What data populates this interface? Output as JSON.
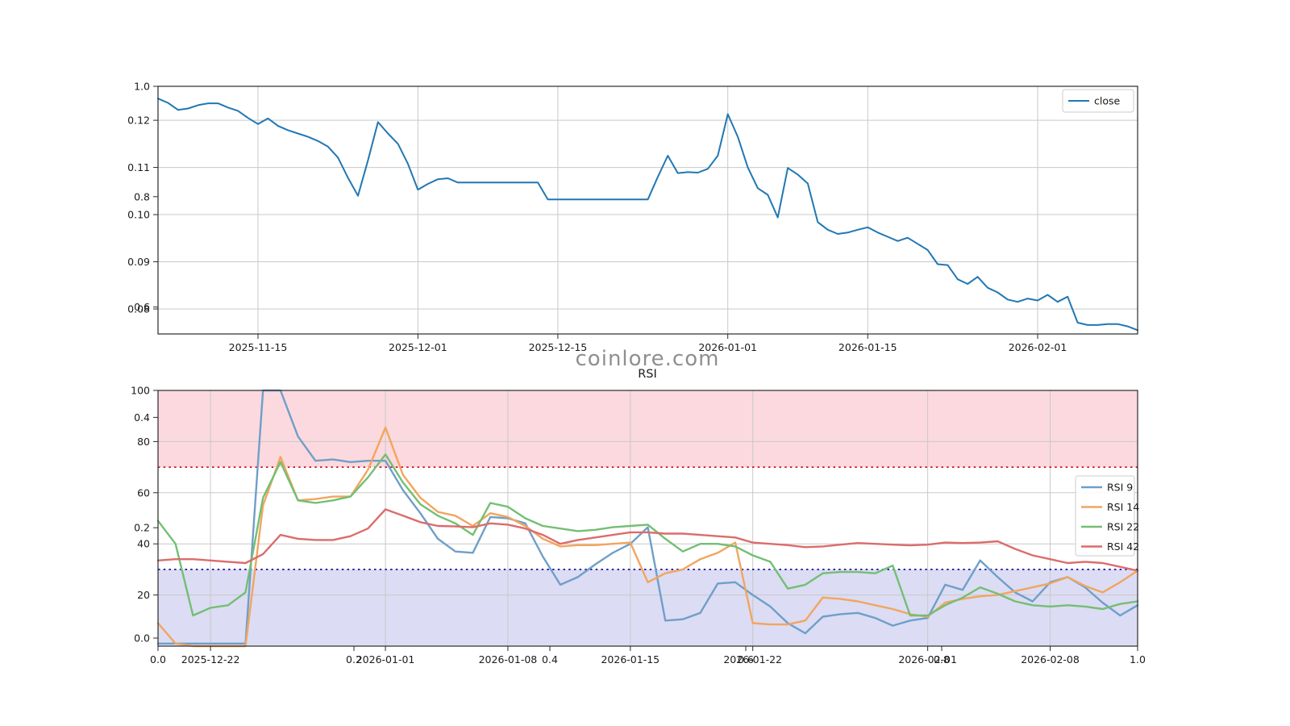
{
  "watermark": "coinlore.com",
  "rsi_title": "RSI",
  "colors": {
    "close": "#2177b4",
    "rsi9": "#6f9fc8",
    "rsi14": "#f2a55f",
    "rsi22": "#73bf73",
    "rsi42": "#dc6c6c",
    "overbought_band": "#fbd9de",
    "oversold_band": "#dcdcf4",
    "overbought_line": "#cc1122",
    "oversold_line": "#1111aa",
    "grid": "#c9c9c9",
    "spine": "#2a2a2a",
    "watermark_text": "#8f8f8f",
    "legend_border": "#cccccc"
  },
  "figure_axis": {
    "x_tick_labels": [
      "0.0",
      "0.2",
      "0.4",
      "0.6",
      "0.8",
      "1.0"
    ],
    "y_tick_labels": [
      "1.0",
      "0.8",
      "0.6",
      "0.4",
      "0.2",
      "0.0"
    ]
  },
  "chart_data": [
    {
      "type": "line",
      "title": "",
      "legend_position": "upper right",
      "grid": true,
      "start_date": "2025-11-05",
      "ylim": [
        0.0747,
        0.1272
      ],
      "y_ticks": [
        {
          "value": 0.12,
          "label": "0.12"
        },
        {
          "value": 0.11,
          "label": "0.11"
        },
        {
          "value": 0.1,
          "label": "0.10"
        },
        {
          "value": 0.09,
          "label": "0.09"
        },
        {
          "value": 0.08,
          "label": "0.08"
        }
      ],
      "x_ticks": [
        {
          "index": 10,
          "label": "2025-11-15"
        },
        {
          "index": 26,
          "label": "2025-12-01"
        },
        {
          "index": 40,
          "label": "2025-12-15"
        },
        {
          "index": 57,
          "label": "2026-01-01"
        },
        {
          "index": 71,
          "label": "2026-01-15"
        },
        {
          "index": 88,
          "label": "2026-02-01"
        }
      ],
      "series": [
        {
          "name": "close",
          "color_key": "close",
          "width": 2,
          "values": [
            0.1246,
            0.1237,
            0.1222,
            0.1225,
            0.1232,
            0.1236,
            0.1236,
            0.1227,
            0.122,
            0.1205,
            0.1192,
            0.1204,
            0.1188,
            0.1179,
            0.1172,
            0.1165,
            0.1156,
            0.1144,
            0.1121,
            0.1078,
            0.104,
            0.1115,
            0.1196,
            0.1172,
            0.115,
            0.1108,
            0.1053,
            0.1065,
            0.1075,
            0.1077,
            0.1068,
            0.1068,
            0.1068,
            0.1068,
            0.1068,
            0.1068,
            0.1068,
            0.1068,
            0.1068,
            0.1032,
            0.1032,
            0.1032,
            0.1032,
            0.1032,
            0.1032,
            0.1032,
            0.1032,
            0.1032,
            0.1032,
            0.1032,
            0.108,
            0.1125,
            0.1088,
            0.109,
            0.1089,
            0.1097,
            0.1125,
            0.1213,
            0.1165,
            0.11,
            0.1056,
            0.1042,
            0.0994,
            0.1099,
            0.1085,
            0.1066,
            0.0984,
            0.0968,
            0.0959,
            0.0962,
            0.0968,
            0.0973,
            0.0962,
            0.0953,
            0.0944,
            0.0951,
            0.0938,
            0.0925,
            0.0895,
            0.0893,
            0.0863,
            0.0853,
            0.0868,
            0.0845,
            0.0835,
            0.082,
            0.0815,
            0.0822,
            0.0818,
            0.083,
            0.0815,
            0.0826,
            0.0771,
            0.0766,
            0.0766,
            0.0768,
            0.0768,
            0.0763,
            0.0755
          ]
        }
      ]
    },
    {
      "type": "line",
      "title": "RSI",
      "legend_position": "center right",
      "grid": true,
      "start_date": "2025-12-19",
      "ylim": [
        0,
        100
      ],
      "y_ticks": [
        {
          "value": 100,
          "label": "100"
        },
        {
          "value": 80,
          "label": "80"
        },
        {
          "value": 60,
          "label": "60"
        },
        {
          "value": 40,
          "label": "40"
        },
        {
          "value": 20,
          "label": "20"
        }
      ],
      "x_ticks": [
        {
          "index": 3,
          "label": "2025-12-22"
        },
        {
          "index": 13,
          "label": "2026-01-01"
        },
        {
          "index": 20,
          "label": "2026-01-08"
        },
        {
          "index": 27,
          "label": "2026-01-15"
        },
        {
          "index": 34,
          "label": "2026-01-22"
        },
        {
          "index": 44,
          "label": "2026-02-01"
        },
        {
          "index": 51,
          "label": "2026-02-08"
        }
      ],
      "bands": [
        {
          "from": 70,
          "to": 100,
          "color_key": "overbought_band"
        },
        {
          "from": 0,
          "to": 30,
          "color_key": "oversold_band"
        }
      ],
      "threshold_lines": [
        {
          "value": 70,
          "color_key": "overbought_line"
        },
        {
          "value": 30,
          "color_key": "oversold_line"
        }
      ],
      "series": [
        {
          "name": "RSI 9",
          "color_key": "rsi9",
          "width": 2.4,
          "values": [
            1,
            1,
            1,
            1,
            1,
            1,
            100,
            100,
            82,
            72.5,
            73,
            72,
            72.5,
            72.5,
            61,
            52,
            42,
            37,
            36.5,
            50.5,
            50,
            48,
            35,
            24,
            27,
            32,
            36.5,
            40,
            46.5,
            10,
            10.5,
            13,
            24.5,
            25,
            20,
            15.5,
            9,
            5,
            11.5,
            12.5,
            13,
            11,
            8,
            10,
            11,
            24,
            22,
            33.5,
            27,
            21,
            17.5,
            25,
            27,
            23,
            17,
            12,
            16
          ]
        },
        {
          "name": "RSI 14",
          "color_key": "rsi14",
          "width": 2.4,
          "values": [
            9,
            1,
            0,
            0,
            0,
            0,
            55,
            74,
            57,
            57.5,
            58.5,
            58.5,
            69,
            85.5,
            67,
            58,
            52.5,
            51,
            47,
            52,
            50.5,
            47,
            42,
            39,
            39.5,
            39.5,
            40,
            40.5,
            25,
            28.5,
            30,
            34,
            36.5,
            40.5,
            9,
            8.5,
            8.5,
            10,
            19,
            18.5,
            17.5,
            16,
            14.5,
            12.5,
            11.5,
            17,
            18.5,
            19.5,
            20,
            21.5,
            23,
            24.5,
            27,
            23.5,
            21,
            25,
            29.5
          ]
        },
        {
          "name": "RSI 22",
          "color_key": "rsi22",
          "width": 2.4,
          "values": [
            49,
            40,
            12,
            15,
            16,
            21,
            58,
            72,
            57,
            56,
            57,
            58.5,
            66,
            75,
            64,
            55.5,
            51,
            48,
            43.5,
            56,
            54.5,
            50,
            47,
            46,
            45,
            45.5,
            46.5,
            47,
            47.5,
            42,
            37,
            40,
            40,
            39,
            35.5,
            33,
            22.5,
            24,
            28.5,
            29,
            29,
            28.5,
            31.5,
            12,
            12,
            16,
            19,
            23,
            20.5,
            17.5,
            16,
            15.5,
            16,
            15.5,
            14.5,
            16.5,
            17.5
          ]
        },
        {
          "name": "RSI 42",
          "color_key": "rsi42",
          "width": 2.4,
          "values": [
            33.5,
            34,
            34,
            33.5,
            33,
            32.5,
            36,
            43.5,
            42,
            41.5,
            41.5,
            43,
            46,
            53.5,
            51,
            48.5,
            47,
            46.8,
            46.5,
            48,
            47.5,
            46,
            43.5,
            40,
            41.5,
            42.5,
            43.5,
            44.5,
            44.5,
            44,
            44,
            43.5,
            43,
            42.5,
            40.5,
            40,
            39.5,
            38.7,
            39,
            39.7,
            40.3,
            40,
            39.7,
            39.4,
            39.7,
            40.5,
            40.3,
            40.5,
            41,
            38,
            35.5,
            34,
            32.5,
            33,
            32.5,
            31,
            29.5
          ]
        }
      ]
    }
  ]
}
